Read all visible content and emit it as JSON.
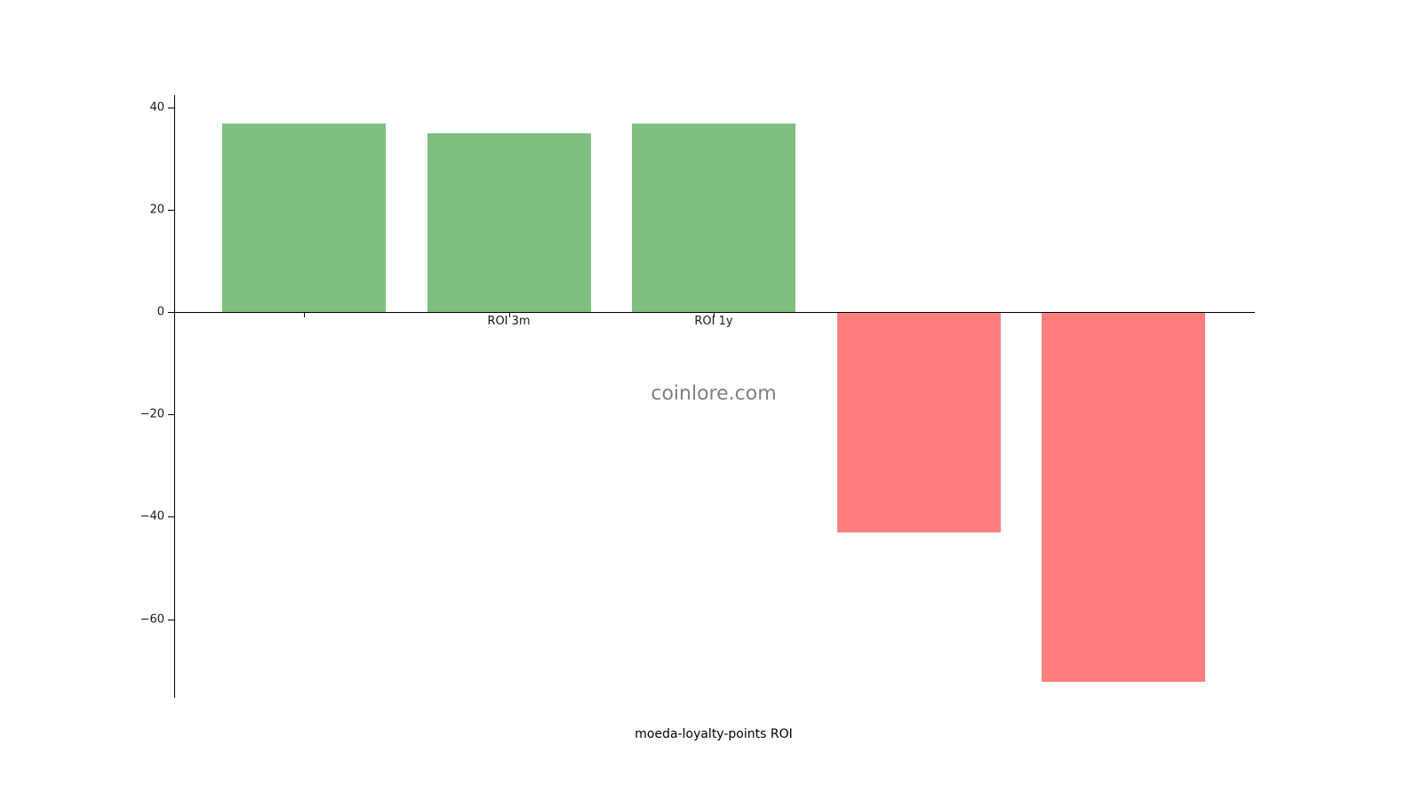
{
  "chart_data": {
    "type": "bar",
    "title": "moeda-loyalty-points ROI",
    "xlabel": "moeda-loyalty-points ROI",
    "ylabel": "",
    "categories": [
      "",
      "ROI 3m",
      "ROI 1y",
      "",
      ""
    ],
    "values": [
      36.8,
      34.9,
      36.8,
      -42.9,
      -72.0
    ],
    "bar_colors": [
      "#7fbf7f",
      "#7fbf7f",
      "#7fbf7f",
      "#ff7f7f",
      "#ff7f7f"
    ],
    "positive_color": "#7fbf7f",
    "negative_color": "#ff7f7f",
    "y_ticks": [
      40,
      20,
      0,
      -20,
      -40,
      -60
    ],
    "y_tick_labels": [
      "40",
      "20",
      "0",
      "−20",
      "−40",
      "−60"
    ],
    "ylim": [
      -75,
      42
    ],
    "grid": false,
    "legend_position": "none"
  },
  "watermark": {
    "text": "coinlore.com",
    "color": "#808080"
  }
}
